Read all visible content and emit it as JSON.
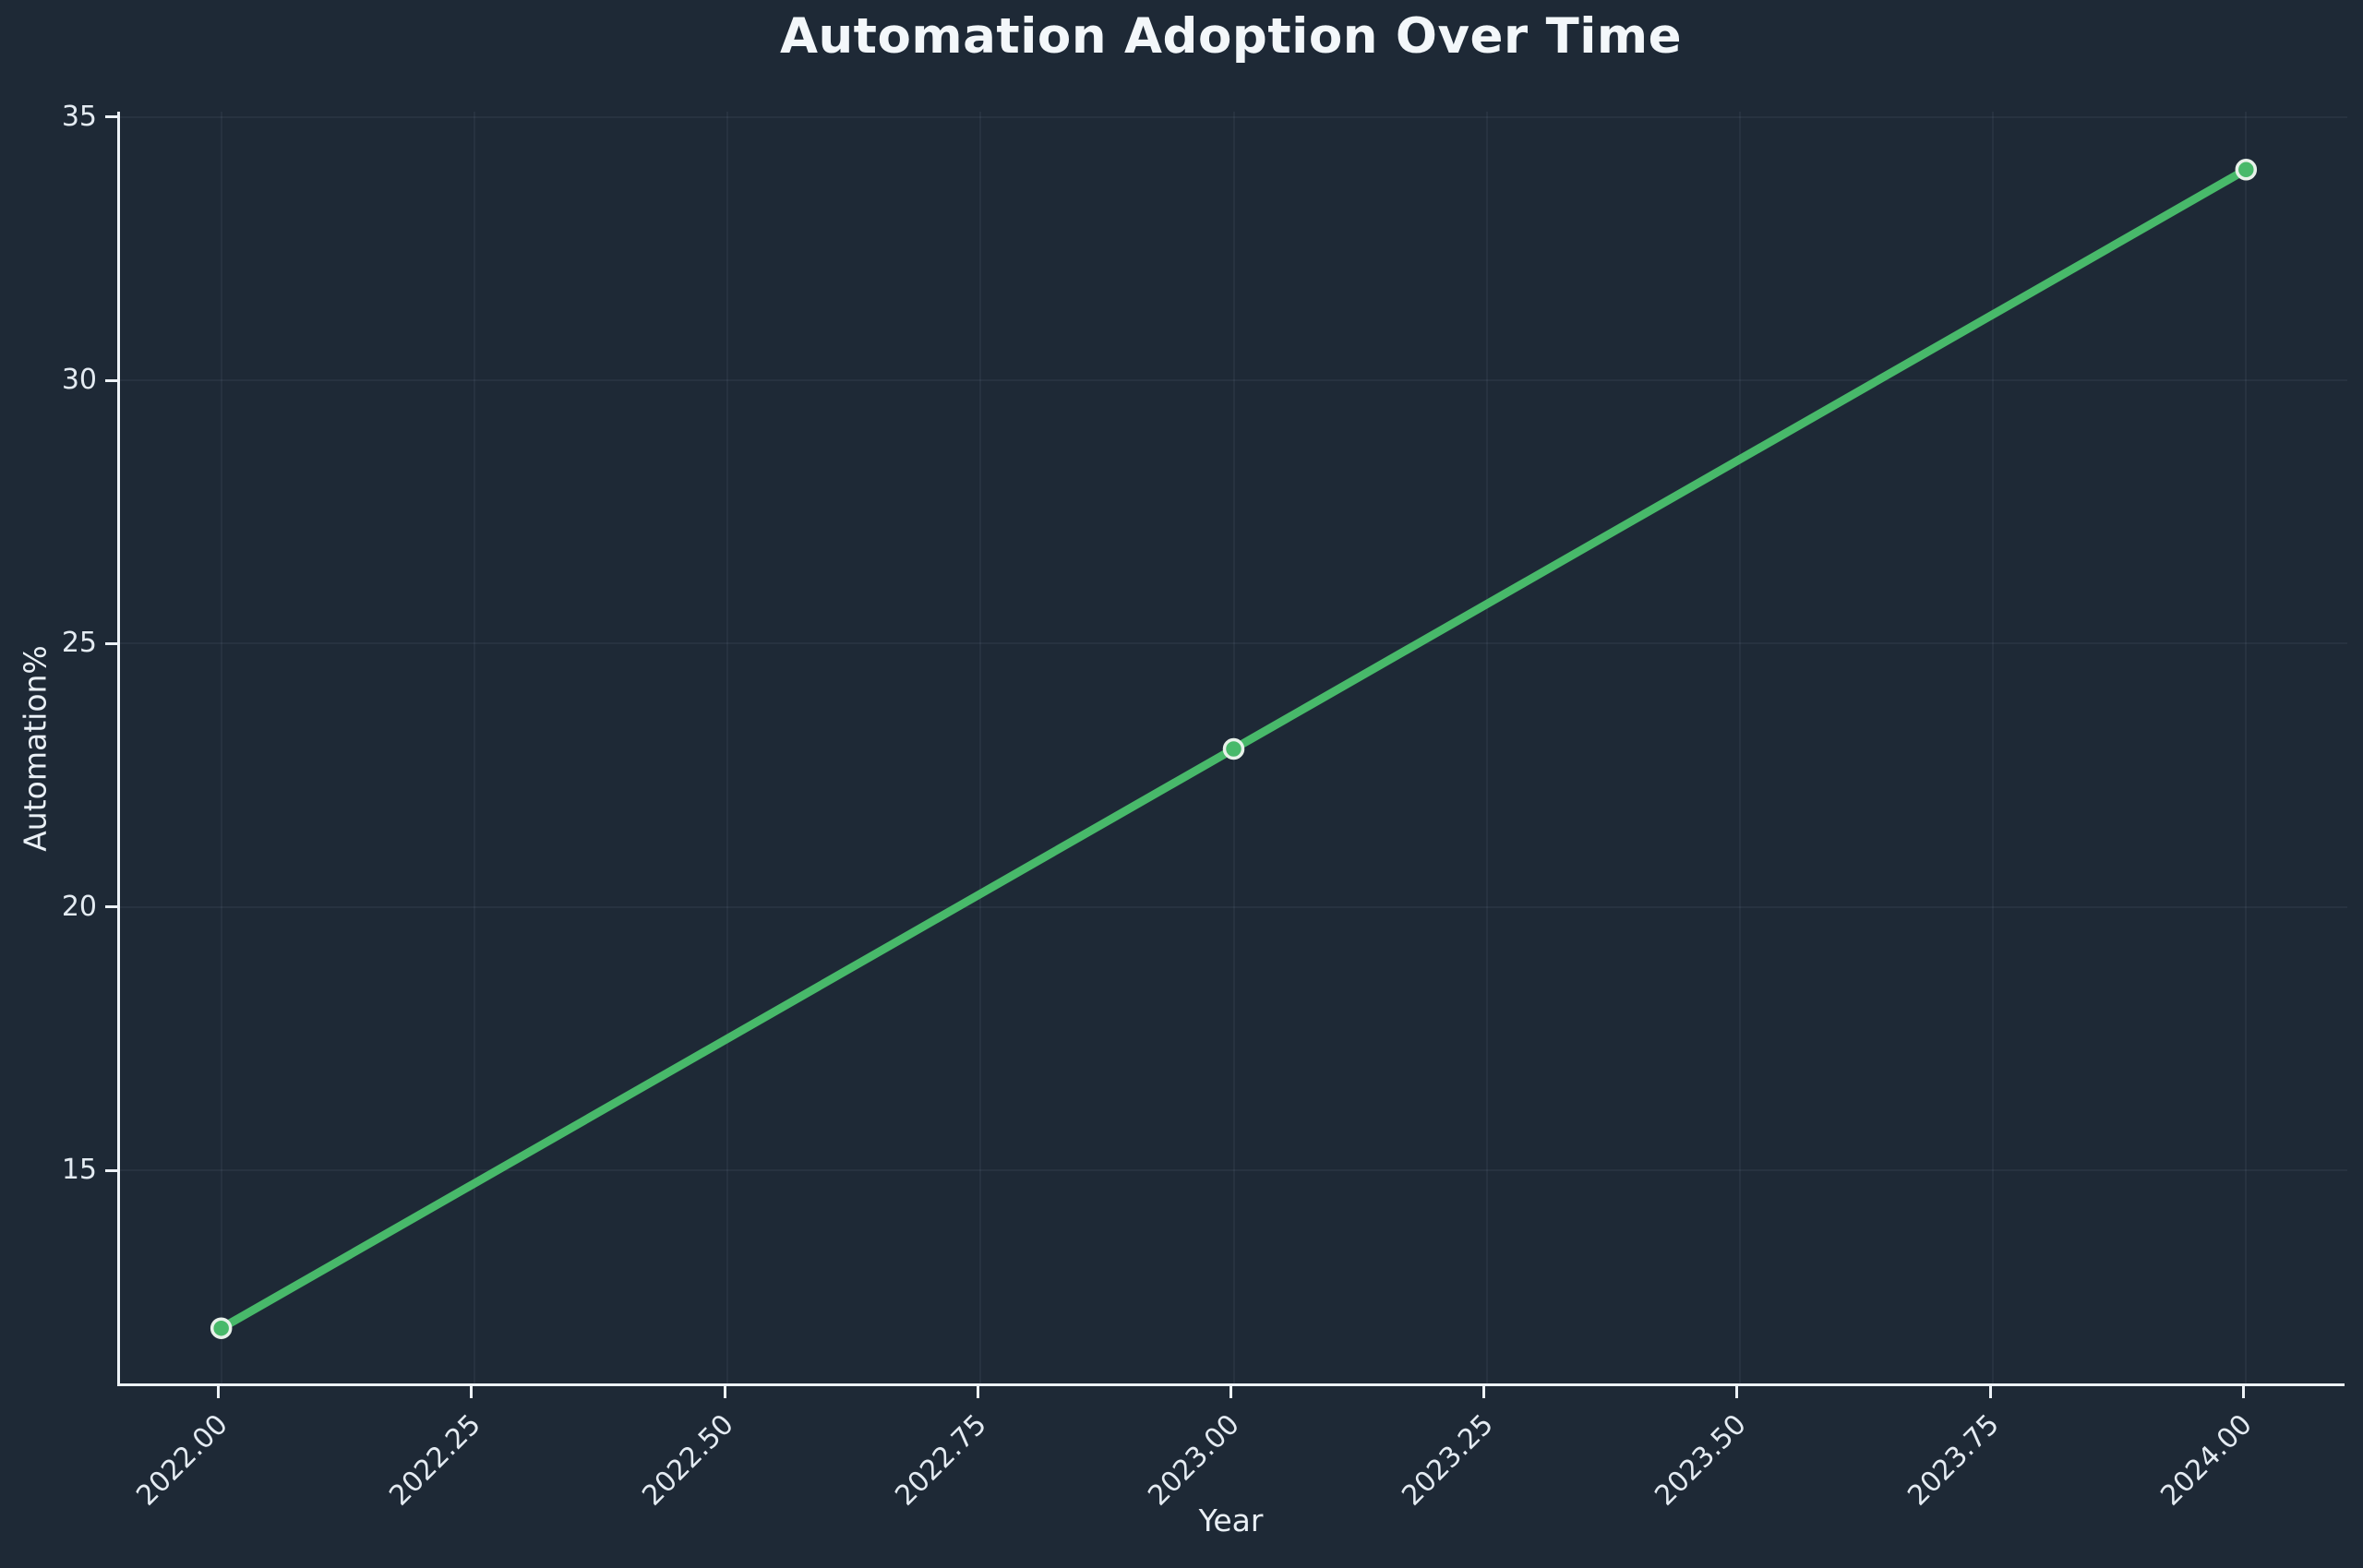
{
  "chart_data": {
    "type": "line",
    "title": "Automation Adoption Over Time",
    "xlabel": "Year",
    "ylabel": "Automation%",
    "series": [
      {
        "name": "Automation%",
        "x": [
          2022,
          2023,
          2024
        ],
        "y": [
          12,
          23,
          34
        ]
      }
    ],
    "xlim": [
      2021.9,
      2024.1
    ],
    "ylim": [
      10.9,
      35.1
    ],
    "xticks": [
      2022.0,
      2022.25,
      2022.5,
      2022.75,
      2023.0,
      2023.25,
      2023.5,
      2023.75,
      2024.0
    ],
    "xtick_labels": [
      "2022.00",
      "2022.25",
      "2022.50",
      "2022.75",
      "2023.00",
      "2023.25",
      "2023.50",
      "2023.75",
      "2024.00"
    ],
    "yticks": [
      15,
      20,
      25,
      30,
      35
    ],
    "ytick_labels": [
      "15",
      "20",
      "25",
      "30",
      "35"
    ],
    "grid": true,
    "legend": "none",
    "colors": {
      "background": "#1e2936",
      "line": "#48b96a",
      "marker_fill": "#48b96a",
      "marker_edge": "#e8f1ea",
      "spine": "#edf2f7",
      "grid": "rgba(190,212,234,0.06)",
      "title_text": "#f3f7fa",
      "tick_text": "#e4ebf2",
      "label_text": "#eaf0f6"
    },
    "marker": "circle",
    "line_width": 9,
    "marker_radius": 10
  }
}
